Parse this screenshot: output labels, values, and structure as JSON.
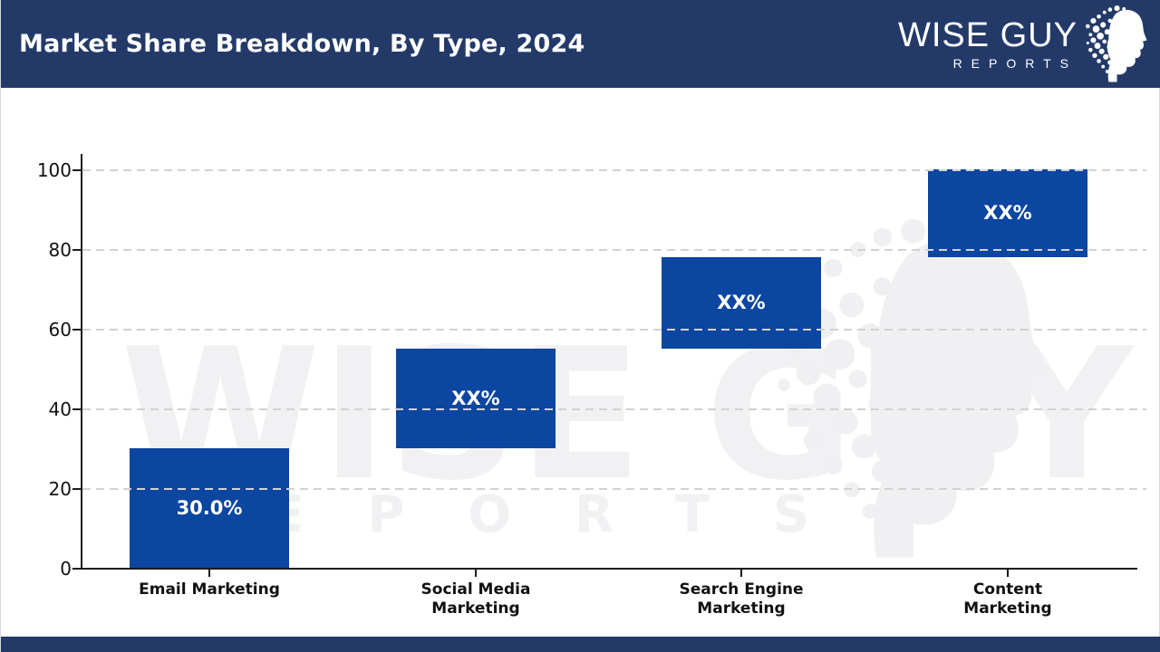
{
  "header": {
    "title": "Market Share Breakdown, By Type, 2024",
    "bg_color": "#233a69",
    "logo": {
      "line1": "WISE GUY",
      "line2": "REPORTS"
    }
  },
  "watermark": {
    "line1": "WISE GUY",
    "line2": "REPORTS"
  },
  "chart_data": {
    "type": "bar",
    "subtype": "waterfall",
    "title": "Market Share Breakdown, By Type, 2024",
    "categories": [
      "Email Marketing",
      "Social Media Marketing",
      "Search Engine Marketing",
      "Content Marketing"
    ],
    "category_lines": [
      [
        "Email Marketing"
      ],
      [
        "Social Media",
        "Marketing"
      ],
      [
        "Search Engine",
        "Marketing"
      ],
      [
        "Content Marketing"
      ]
    ],
    "segments": [
      {
        "category": "Email Marketing",
        "start": 0,
        "end": 30,
        "value": 30,
        "label": "30.0%"
      },
      {
        "category": "Social Media Marketing",
        "start": 30,
        "end": 55,
        "value": 25,
        "label": "XX%"
      },
      {
        "category": "Search Engine Marketing",
        "start": 55,
        "end": 78,
        "value": 23,
        "label": "XX%"
      },
      {
        "category": "Content Marketing",
        "start": 78,
        "end": 100,
        "value": 22,
        "label": "XX%"
      }
    ],
    "xlabel": "",
    "ylabel": "",
    "ylim": [
      0,
      100
    ],
    "yticks": [
      0,
      20,
      40,
      60,
      80,
      100
    ],
    "grid": "horizontal-dashed",
    "grid_above_bars": true,
    "legend": "none",
    "bar_color": "#0b46a0",
    "bar_label_color": "#ffffff",
    "axis_color": "#1c1c1c",
    "grid_color": "#d2d2d2"
  },
  "footer": {
    "bg_color": "#233a69"
  }
}
